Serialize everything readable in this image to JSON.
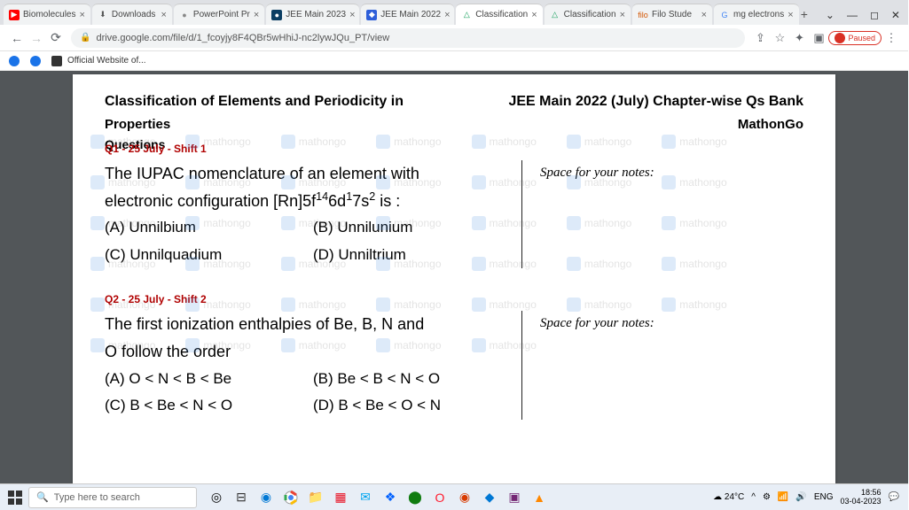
{
  "tabs": [
    {
      "label": "Biomolecules",
      "fav": "▶",
      "favbg": "#ff0000",
      "favcolor": "#fff"
    },
    {
      "label": "Downloads",
      "fav": "⬇",
      "favbg": "transparent",
      "favcolor": "#555"
    },
    {
      "label": "PowerPoint Pr",
      "fav": "●",
      "favbg": "transparent",
      "favcolor": "#888"
    },
    {
      "label": "JEE Main 2023",
      "fav": "●",
      "favbg": "#0a3d62",
      "favcolor": "#fff"
    },
    {
      "label": "JEE Main 2022",
      "fav": "◆",
      "favbg": "#2e5fd9",
      "favcolor": "#fff"
    },
    {
      "label": "Classification",
      "fav": "△",
      "favbg": "transparent",
      "favcolor": "#0f9d58",
      "active": true
    },
    {
      "label": "Classification",
      "fav": "△",
      "favbg": "transparent",
      "favcolor": "#0f9d58"
    },
    {
      "label": "Filo Stude",
      "fav": "filo",
      "favbg": "transparent",
      "favcolor": "#d35400"
    },
    {
      "label": "mg electrons",
      "fav": "G",
      "favbg": "transparent",
      "favcolor": "#4285f4"
    }
  ],
  "url": "drive.google.com/file/d/1_fcoyjy8F4QBr5wHhiJ-nc2lywJQu_PT/view",
  "paused_label": "Paused",
  "bookmarks_label": "Official Website of...",
  "doc": {
    "title_left": "Classification of Elements and Periodicity in",
    "title_right": "JEE Main 2022 (July) Chapter-wise Qs Bank",
    "subtitle_left": "Properties",
    "subtitle_right": "MathonGo",
    "questions_label": "Questions",
    "q1": {
      "shift": "Q1 - 25 July - Shift 1",
      "text_l1": "The IUPAC nomenclature of an element with",
      "text_l2": "electronic configuration [Rn]5f",
      "sup1": "14",
      "mid": "6d",
      "sup2": "1",
      "mid2": "7s",
      "sup3": "2",
      "tail": " is :",
      "a": "(A) Unnilbium",
      "b": "(B) Unnilunium",
      "c": "(C) Unnilquadium",
      "d": "(D) Unniltrium",
      "notes": "Space for your notes:"
    },
    "q2": {
      "shift": "Q2 - 25 July - Shift 2",
      "text_l1": "The first ionization enthalpies of Be, B, N and",
      "text_l2": "O follow the order",
      "a": "(A) O < N < B < Be",
      "b": "(B) Be < B < N < O",
      "c": "(C) B < Be < N < O",
      "d": "(D) B < Be < O < N",
      "notes": "Space for your notes:"
    },
    "watermark": "mathongo"
  },
  "taskbar": {
    "search_placeholder": "Type here to search",
    "weather": "24°C",
    "time": "18:56",
    "date": "03-04-2023",
    "lang": "ENG"
  }
}
